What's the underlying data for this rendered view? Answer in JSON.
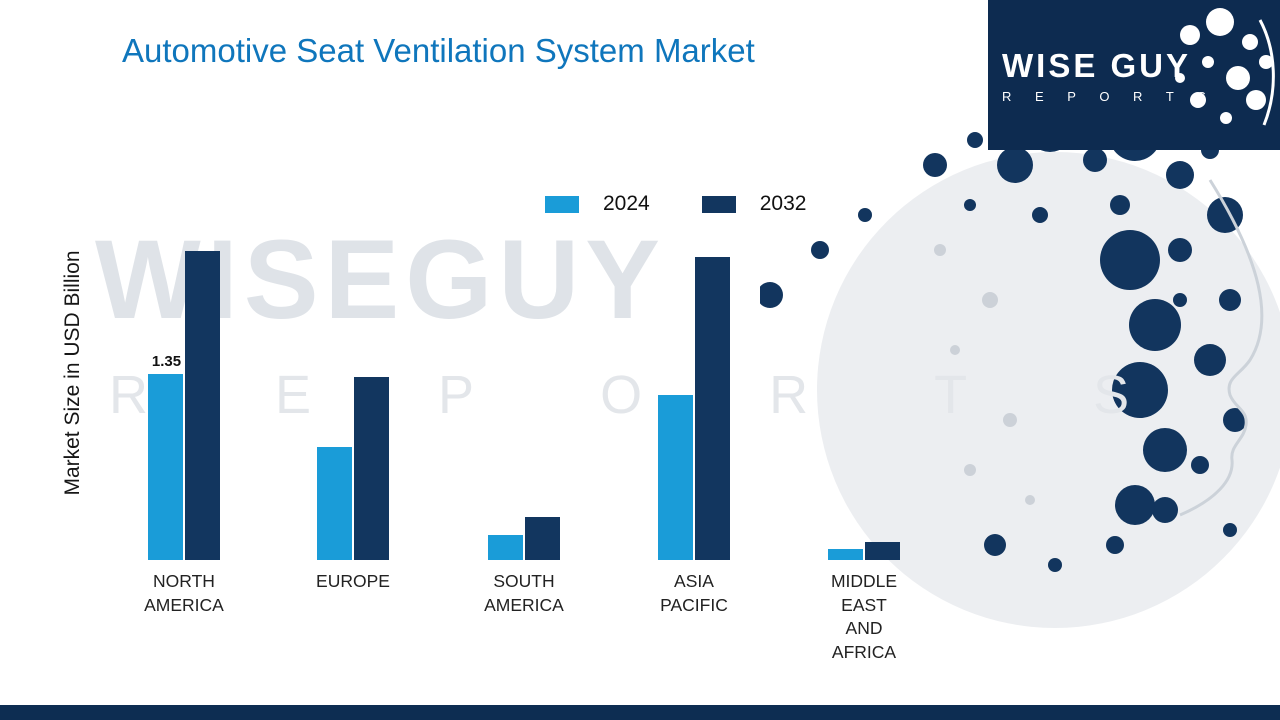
{
  "page": {
    "title": "Automotive Seat Ventilation System Market"
  },
  "logo": {
    "brand_line1": "WISE GUY",
    "brand_line2": "R E P O R T S"
  },
  "watermark": {
    "line1": "WISEGUY",
    "line2": "R E P O R T S"
  },
  "chart_data": {
    "type": "bar",
    "title": "Automotive Seat Ventilation System Market",
    "ylabel": "Market Size in USD Billion",
    "xlabel": "",
    "unit": "USD Billion",
    "categories": [
      "NORTH AMERICA",
      "EUROPE",
      "SOUTH AMERICA",
      "ASIA PACIFIC",
      "MIDDLE EAST AND AFRICA"
    ],
    "category_label_lines": [
      [
        "NORTH",
        "AMERICA"
      ],
      [
        "EUROPE"
      ],
      [
        "SOUTH",
        "AMERICA"
      ],
      [
        "ASIA",
        "PACIFIC"
      ],
      [
        "MIDDLE",
        "EAST",
        "AND",
        "AFRICA"
      ]
    ],
    "series": [
      {
        "name": "2024",
        "color": "#1a9cd8",
        "values": [
          1.35,
          0.82,
          0.18,
          1.2,
          0.08
        ]
      },
      {
        "name": "2032",
        "color": "#12365f",
        "values": [
          2.25,
          1.33,
          0.31,
          2.2,
          0.13
        ]
      }
    ],
    "data_labels": [
      {
        "series_index": 0,
        "category_index": 0,
        "text": "1.35"
      }
    ],
    "ylim": [
      0,
      2.4
    ],
    "legend_position": "top",
    "grid": false
  },
  "colors": {
    "title_blue": "#0f76bc",
    "accent_light_blue": "#1a9cd8",
    "accent_navy": "#12365f",
    "footer_navy": "#0d2d52",
    "watermark_gray": "#dfe3e8"
  }
}
